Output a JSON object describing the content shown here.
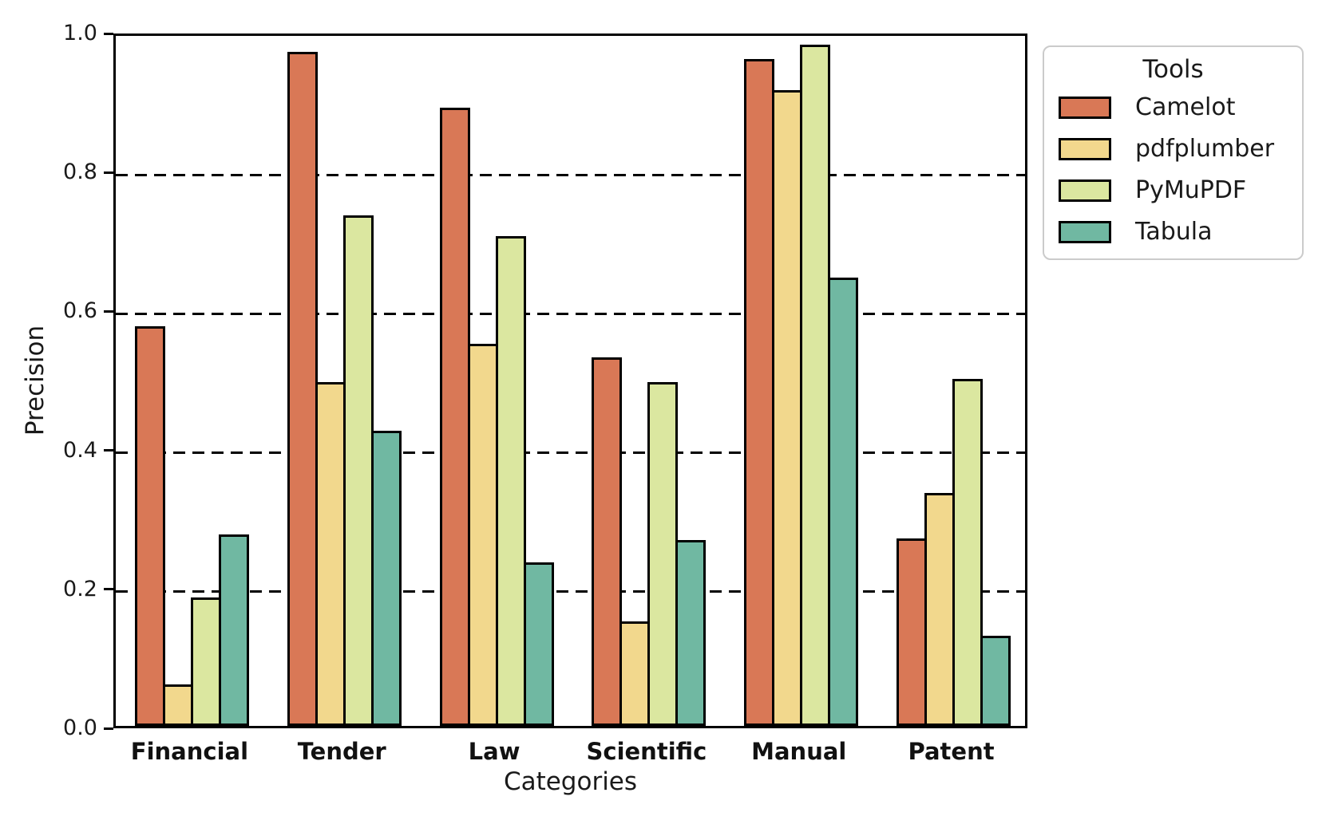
{
  "axes": {
    "ylabel": "Precision",
    "xlabel": "Categories"
  },
  "legend": {
    "title": "Tools",
    "position": "outside-upper-right"
  },
  "chart_data": {
    "type": "bar",
    "title": "",
    "xlabel": "Categories",
    "ylabel": "Precision",
    "categories": [
      "Financial",
      "Tender",
      "Law",
      "Scientific",
      "Manual",
      "Patent"
    ],
    "series": [
      {
        "name": "Camelot",
        "color": "#D97856",
        "values": [
          0.575,
          0.97,
          0.89,
          0.53,
          0.96,
          0.27
        ]
      },
      {
        "name": "pdfplumber",
        "color": "#F2D88D",
        "values": [
          0.06,
          0.495,
          0.55,
          0.15,
          0.915,
          0.335
        ]
      },
      {
        "name": "PyMuPDF",
        "color": "#DBE7A0",
        "values": [
          0.185,
          0.735,
          0.705,
          0.495,
          0.98,
          0.5
        ]
      },
      {
        "name": "Tabula",
        "color": "#70B8A2",
        "values": [
          0.275,
          0.425,
          0.235,
          0.267,
          0.645,
          0.13
        ]
      }
    ],
    "ylim": [
      0.0,
      1.0
    ],
    "yticks": [
      0.0,
      0.2,
      0.4,
      0.6,
      0.8,
      1.0
    ],
    "ytick_labels": [
      "0.0",
      "0.2",
      "0.4",
      "0.6",
      "0.8",
      "1.0"
    ],
    "grid": "horizontal-dashed",
    "gridline_color": "#000000",
    "bar_edge_color": "#000000",
    "background": "#ffffff",
    "legend_title": "Tools",
    "legend_entries": [
      "Camelot",
      "pdfplumber",
      "PyMuPDF",
      "Tabula"
    ]
  }
}
